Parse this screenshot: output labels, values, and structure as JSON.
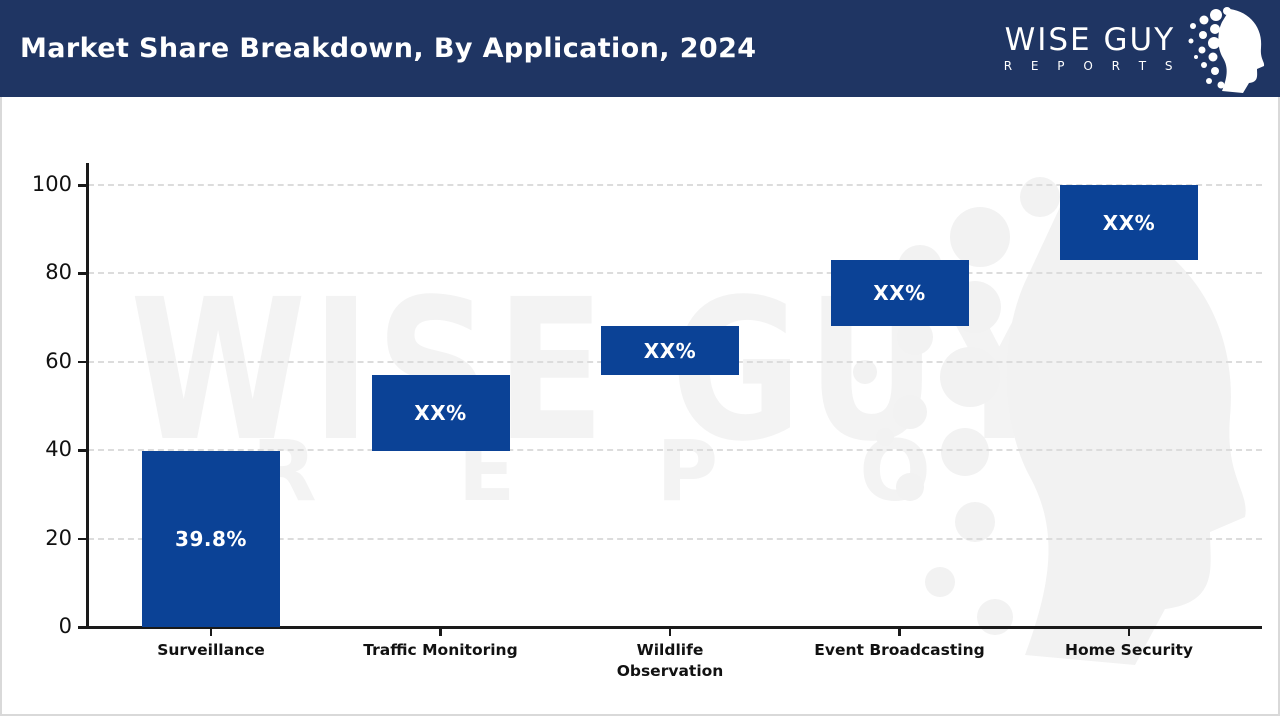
{
  "header": {
    "title": "Market Share Breakdown, By Application, 2024",
    "background_color": "#1f3563",
    "logo": {
      "line1": "WISE GUY",
      "line2": "R E P O R T S"
    }
  },
  "watermark": {
    "line1": "WISE GUY",
    "line2": "R E P O R T S"
  },
  "chart_data": {
    "type": "bar",
    "subtype": "waterfall",
    "title": "Market Share Breakdown, By Application, 2024",
    "xlabel": "",
    "ylabel": "",
    "categories": [
      "Surveillance",
      "Traffic Monitoring",
      "Wildlife\nObservation",
      "Event Broadcasting",
      "Home Security"
    ],
    "segments": [
      {
        "category": "Surveillance",
        "start": 0,
        "end": 39.8,
        "label": "39.8%"
      },
      {
        "category": "Traffic Monitoring",
        "start": 39.8,
        "end": 57,
        "label": "XX%"
      },
      {
        "category": "Wildlife Observation",
        "start": 57,
        "end": 68,
        "label": "XX%"
      },
      {
        "category": "Event Broadcasting",
        "start": 68,
        "end": 83,
        "label": "XX%"
      },
      {
        "category": "Home Security",
        "start": 83,
        "end": 100,
        "label": "XX%"
      }
    ],
    "yticks": [
      0,
      20,
      40,
      60,
      80,
      100
    ],
    "ylim": [
      0,
      105
    ],
    "grid": "horizontal-dashed",
    "legend": "none",
    "bar_color": "#0b4296",
    "bar_label_color": "#ffffff",
    "axis_color": "#1a1a1a",
    "gridline_color": "#dcdcdc"
  }
}
